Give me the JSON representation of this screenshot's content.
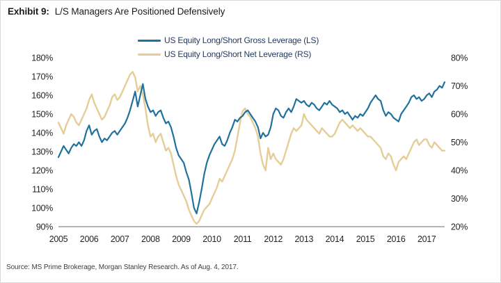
{
  "header": {
    "exhibit_label": "Exhibit 9:",
    "title": "L/S Managers Are Positioned Defensively"
  },
  "legend": [
    {
      "label": "US Equity Long/Short Gross Leverage (LS)",
      "color": "#20719C"
    },
    {
      "label": "US Equity Long/Short Net Leverage (RS)",
      "color": "#E5CD96"
    }
  ],
  "source": "Source: MS Prime Brokerage, Morgan Stanley Research. As of Aug. 4, 2017.",
  "chart_data": {
    "type": "line",
    "title": "L/S Managers Are Positioned Defensively",
    "xlabel": "",
    "ylabel_left": "Gross Leverage (LS)",
    "ylabel_right": "Net Leverage (RS)",
    "grid": false,
    "legend_position": "top-center",
    "x_unit": "monthly from Jan 2005 to Aug 2017",
    "x_tick_labels": [
      "2005",
      "2006",
      "2007",
      "2008",
      "2009",
      "2010",
      "2011",
      "2012",
      "2013",
      "2014",
      "2015",
      "2016",
      "2017"
    ],
    "left_axis": {
      "min": 90,
      "max": 180,
      "tick_values": [
        180,
        170,
        160,
        150,
        140,
        130,
        120,
        110,
        100,
        90
      ],
      "tick_labels": [
        "180%",
        "170%",
        "160%",
        "150%",
        "140%",
        "130%",
        "120%",
        "110%",
        "100%",
        "90%"
      ]
    },
    "right_axis": {
      "min": 20,
      "max": 80,
      "tick_values": [
        80,
        70,
        60,
        50,
        40,
        30,
        20
      ],
      "tick_labels": [
        "80%",
        "70%",
        "60%",
        "50%",
        "40%",
        "30%",
        "20%"
      ]
    },
    "series": [
      {
        "name": "US Equity Long/Short Gross Leverage (LS)",
        "axis": "left",
        "color": "#20719C",
        "values": [
          127,
          130,
          133,
          131,
          129,
          132,
          134,
          133,
          135,
          133,
          136,
          141,
          144,
          139,
          141,
          142,
          138,
          135,
          137,
          136,
          138,
          140,
          141,
          139,
          141,
          143,
          145,
          148,
          152,
          157,
          162,
          154,
          160,
          166,
          158,
          154,
          151,
          152,
          149,
          151,
          152,
          148,
          145,
          146,
          143,
          138,
          132,
          128,
          126,
          124,
          119,
          115,
          108,
          100,
          97,
          103,
          110,
          118,
          124,
          128,
          131,
          134,
          136,
          138,
          134,
          133,
          136,
          140,
          143,
          147,
          146,
          148,
          149,
          151,
          152,
          150,
          148,
          146,
          143,
          137,
          140,
          138,
          139,
          143,
          150,
          153,
          152,
          149,
          148,
          151,
          153,
          151,
          154,
          158,
          157,
          156,
          157,
          155,
          154,
          156,
          155,
          153,
          152,
          154,
          156,
          155,
          157,
          155,
          154,
          153,
          151,
          152,
          150,
          151,
          149,
          147,
          149,
          148,
          150,
          149,
          151,
          153,
          156,
          158,
          160,
          158,
          157,
          152,
          149,
          151,
          150,
          148,
          147,
          146,
          150,
          152,
          154,
          156,
          159,
          160,
          158,
          159,
          157,
          158,
          160,
          161,
          159,
          162,
          163,
          165,
          164,
          167
        ]
      },
      {
        "name": "US Equity Long/Short Net Leverage (RS)",
        "axis": "right",
        "color": "#E5CD96",
        "values": [
          57,
          55,
          53,
          56,
          58,
          60,
          59,
          57,
          56,
          58,
          60,
          62,
          65,
          67,
          64,
          62,
          60,
          58,
          59,
          61,
          63,
          66,
          67,
          65,
          66,
          68,
          70,
          72,
          74,
          75,
          73,
          68,
          70,
          67,
          62,
          56,
          52,
          53,
          50,
          52,
          53,
          50,
          47,
          48,
          46,
          42,
          38,
          35,
          33,
          31,
          29,
          26,
          24,
          22,
          21,
          22,
          24,
          26,
          27,
          28,
          30,
          32,
          34,
          37,
          36,
          38,
          40,
          42,
          44,
          47,
          52,
          57,
          61,
          62,
          60,
          59,
          57,
          55,
          52,
          46,
          42,
          40,
          48,
          44,
          46,
          44,
          43,
          42,
          44,
          47,
          50,
          53,
          55,
          54,
          55,
          56,
          60,
          58,
          57,
          56,
          55,
          54,
          53,
          55,
          54,
          53,
          52,
          52,
          53,
          55,
          57,
          58,
          57,
          56,
          55,
          56,
          55,
          54,
          55,
          54,
          53,
          52,
          52,
          51,
          50,
          49,
          48,
          45,
          44,
          46,
          45,
          42,
          40,
          43,
          44,
          45,
          44,
          46,
          48,
          50,
          51,
          49,
          50,
          51,
          51,
          49,
          48,
          50,
          49,
          48,
          47,
          47
        ]
      }
    ]
  }
}
